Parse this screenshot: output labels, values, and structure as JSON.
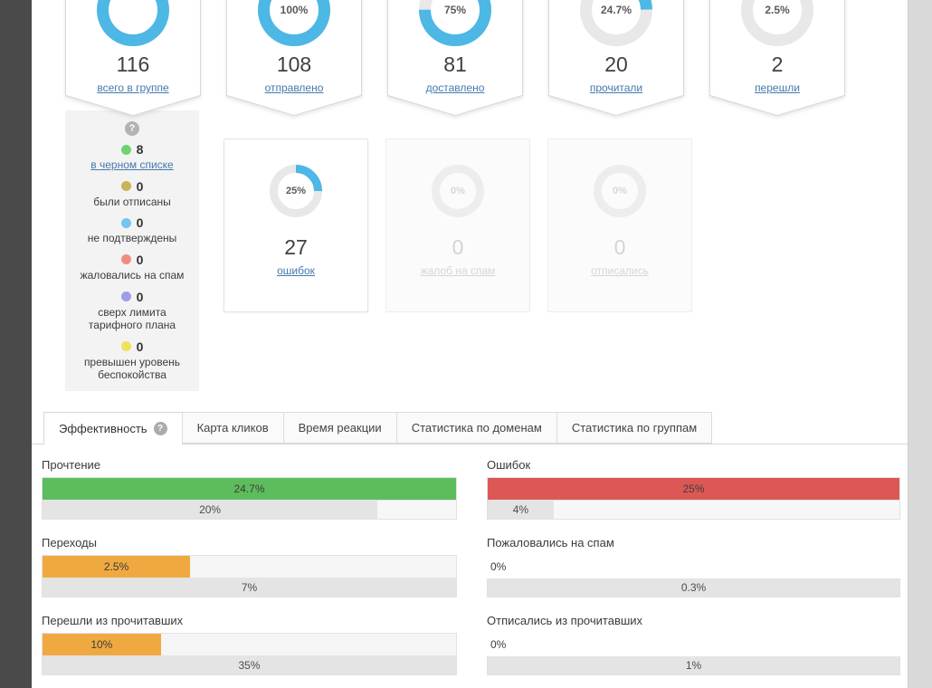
{
  "colors": {
    "blue": "#4db7e5",
    "donut_track": "#e8e8e8",
    "donut_track_faded": "#ededed",
    "green": "#5dbd5d",
    "red": "#dd5855",
    "orange": "#f0a941",
    "link": "#4579ad"
  },
  "top_cards": [
    {
      "percent": "",
      "pct": 100,
      "value": "116",
      "label": "всего в группе"
    },
    {
      "percent": "100%",
      "pct": 100,
      "value": "108",
      "label": "отправлено"
    },
    {
      "percent": "75%",
      "pct": 75,
      "value": "81",
      "label": "доставлено"
    },
    {
      "percent": "24.7%",
      "pct": 24.7,
      "value": "20",
      "label": "прочитали"
    },
    {
      "percent": "2.5%",
      "pct": 2.5,
      "value": "2",
      "label": "перешли"
    }
  ],
  "legend": {
    "help_icon": "?",
    "items": [
      {
        "color": "#6fd46f",
        "value": "8",
        "label": "в черном списке"
      },
      {
        "color": "#c9b458",
        "value": "0",
        "label": "были отписаны"
      },
      {
        "color": "#74c6f0",
        "value": "0",
        "label": "не подтверждены"
      },
      {
        "color": "#f28b82",
        "value": "0",
        "label": "жаловались на спам"
      },
      {
        "color": "#9e9ee6",
        "value": "0",
        "label": "сверх лимита тарифного плана"
      },
      {
        "color": "#ede25a",
        "value": "0",
        "label": "превышен уровень беспокойства"
      }
    ]
  },
  "mid_cards": [
    {
      "percent": "25%",
      "pct": 25,
      "value": "27",
      "label": "ошибок"
    },
    {
      "percent": "0%",
      "pct": 0,
      "value": "0",
      "label": "жалоб на спам"
    },
    {
      "percent": "0%",
      "pct": 0,
      "value": "0",
      "label": "отписались"
    }
  ],
  "tabs": [
    {
      "label": "Эффективность",
      "help": "?"
    },
    {
      "label": "Карта кликов"
    },
    {
      "label": "Время реакции"
    },
    {
      "label": "Статистика по доменам"
    },
    {
      "label": "Статистика по группам"
    }
  ],
  "metrics": {
    "left": [
      {
        "title": "Прочтение",
        "value_label": "24.7%",
        "value_width": 100,
        "bar_color": "#5dbd5d",
        "avg_label": "20%",
        "avg_width": 81
      },
      {
        "title": "Переходы",
        "value_label": "2.5%",
        "value_width": 35.7,
        "bar_color": "#f0a941",
        "avg_label": "7%",
        "avg_width": 100
      },
      {
        "title": "Перешли из прочитавших",
        "value_label": "10%",
        "value_width": 28.6,
        "bar_color": "#f0a941",
        "avg_label": "35%",
        "avg_width": 100
      }
    ],
    "right": [
      {
        "title": "Ошибок",
        "value_label": "25%",
        "value_width": 100,
        "bar_color": "#dd5855",
        "avg_label": "4%",
        "avg_width": 16
      },
      {
        "title": "Пожаловались на спам",
        "value_label": "0%",
        "value_width": 0,
        "bar_color": "transparent",
        "avg_label": "0.3%",
        "avg_width": 100
      },
      {
        "title": "Отписались из прочитавших",
        "value_label": "0%",
        "value_width": 0,
        "bar_color": "transparent",
        "avg_label": "1%",
        "avg_width": 100
      }
    ]
  }
}
